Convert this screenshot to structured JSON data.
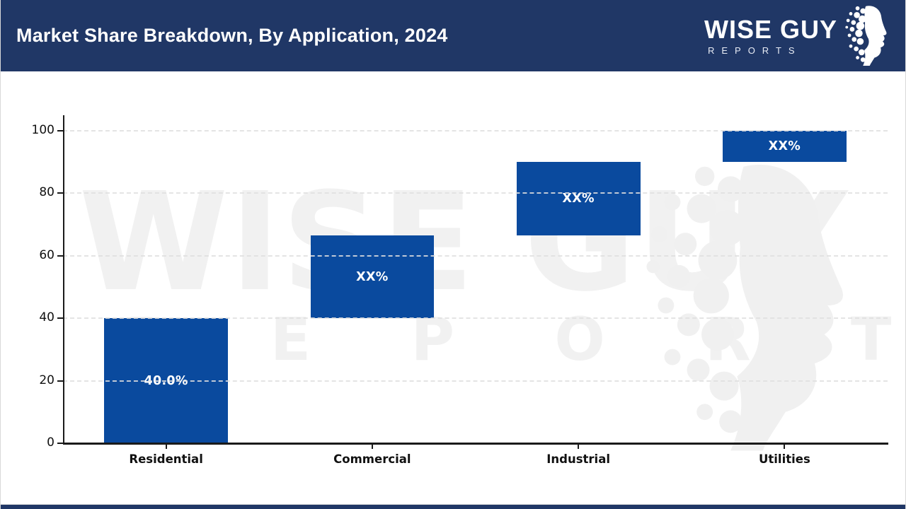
{
  "header": {
    "title": "Market Share Breakdown, By Application, 2024",
    "logo": {
      "primary": "WISE GUY",
      "secondary": "REPORTS"
    }
  },
  "watermark": {
    "primary": "WISE GUY",
    "secondary": "R E P O R T S"
  },
  "colors": {
    "header_background": "#203766",
    "footer_background": "#203766",
    "bar_fill": "#0a4a9e",
    "bar_label": "#ffffff",
    "axis": "#1a1a1a",
    "tick_label": "#111111",
    "gridline": "#e0e0e0",
    "watermark": "#f1f1f1",
    "border": "#d9d9d9"
  },
  "chart_data": {
    "type": "bar",
    "subtype": "waterfall",
    "title": "Market Share Breakdown, By Application, 2024",
    "categories": [
      "Residential",
      "Commercial",
      "Industrial",
      "Utilities"
    ],
    "segments": [
      {
        "category": "Residential",
        "start": 0,
        "end": 40,
        "value_label": "40.0%"
      },
      {
        "category": "Commercial",
        "start": 40,
        "end": 66.5,
        "value_label": "XX%"
      },
      {
        "category": "Industrial",
        "start": 66.5,
        "end": 90,
        "value_label": "XX%"
      },
      {
        "category": "Utilities",
        "start": 90,
        "end": 100,
        "value_label": "XX%"
      }
    ],
    "xlabel": "",
    "ylabel": "",
    "yticks": [
      0,
      20,
      40,
      60,
      80,
      100
    ],
    "ylim": [
      0,
      105
    ],
    "grid": "horizontal-dashed",
    "grid_above_bars": true,
    "legend": "none"
  }
}
